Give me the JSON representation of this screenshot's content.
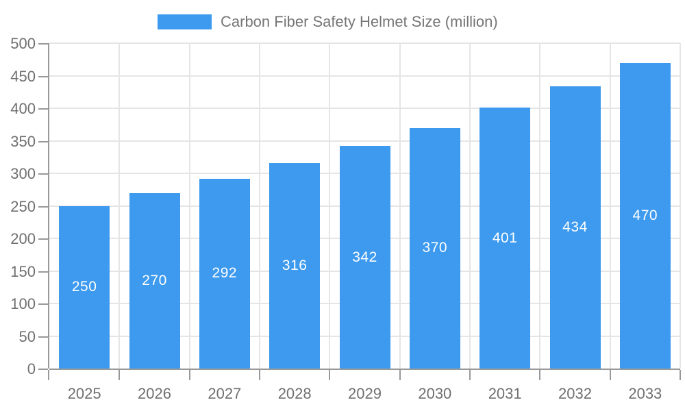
{
  "chart_data": {
    "type": "bar",
    "title": "Carbon Fiber Safety Helmet Size (million)",
    "legend_entries": [
      "Carbon Fiber Safety Helmet Size (million)"
    ],
    "legend_position": "top-center",
    "categories": [
      "2025",
      "2026",
      "2027",
      "2028",
      "2029",
      "2030",
      "2031",
      "2032",
      "2033"
    ],
    "values": [
      250,
      270,
      292,
      316,
      342,
      370,
      401,
      434,
      470
    ],
    "xlabel": "",
    "ylabel": "",
    "ylim": [
      0,
      500
    ],
    "yticks": [
      0,
      50,
      100,
      150,
      200,
      250,
      300,
      350,
      400,
      450,
      500
    ],
    "grid": "horizontal and vertical light gridlines",
    "bar_value_labels": "centered inside bars"
  },
  "colors": {
    "bar": "#3D9AEE",
    "bar_label": "#FFFFFF",
    "axis": "#999999",
    "grid": "#E5E5E5",
    "tick_text": "#707070",
    "legend_text": "#757575",
    "background": "#FFFFFF"
  }
}
